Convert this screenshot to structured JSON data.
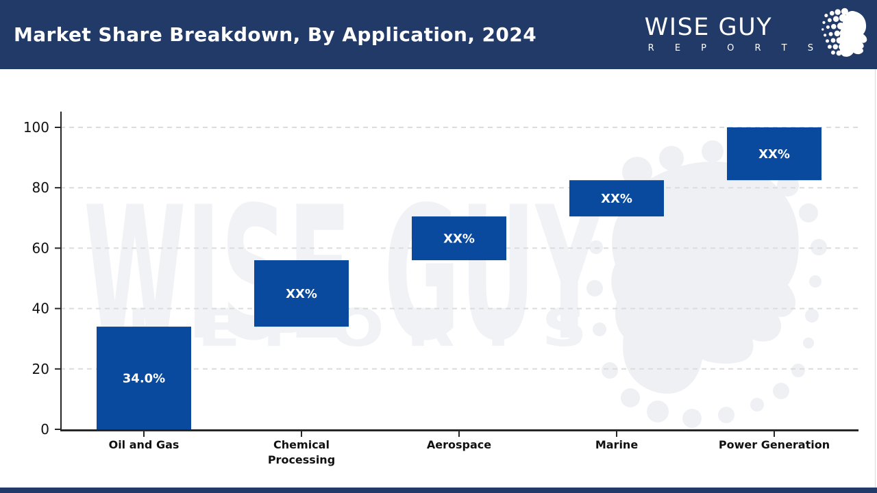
{
  "header": {
    "title": "Market Share Breakdown, By Application, 2024",
    "logo": {
      "name": "WISE GUY",
      "subtitle": "R E P O R T S"
    }
  },
  "watermark": {
    "line1": "WISE GUY",
    "line2": "R E P O R T S"
  },
  "chart_data": {
    "type": "bar",
    "subtype": "waterfall",
    "title": "Market Share Breakdown, By Application, 2024",
    "xlabel": "",
    "ylabel": "",
    "categories": [
      "Oil and Gas",
      "Chemical Processing",
      "Aerospace",
      "Marine",
      "Power Generation"
    ],
    "tick_labels": [
      "Oil and Gas",
      "Chemical\nProcessing",
      "Aerospace",
      "Marine",
      "Power Generation"
    ],
    "series": [
      {
        "name": "Market share (%)",
        "segments": [
          {
            "category": "Oil and Gas",
            "start": 0,
            "end": 34,
            "label": "34.0%"
          },
          {
            "category": "Chemical Processing",
            "start": 34,
            "end": 56,
            "label": "XX%"
          },
          {
            "category": "Aerospace",
            "start": 56,
            "end": 70.5,
            "label": "XX%"
          },
          {
            "category": "Marine",
            "start": 70.5,
            "end": 82.5,
            "label": "XX%"
          },
          {
            "category": "Power Generation",
            "start": 82.5,
            "end": 100,
            "label": "XX%"
          }
        ]
      }
    ],
    "yticks": [
      0,
      20,
      40,
      60,
      80,
      100
    ],
    "ylim": [
      0,
      105
    ],
    "grid": "horizontal-dashed",
    "legend": "none",
    "bar_color": "#0A4A9E",
    "bar_label_color": "#FFFFFF",
    "axis_color": "#262626",
    "tick_text_color": "#111111",
    "gridline_color": "#DCDCDC"
  },
  "colors": {
    "navy": "#223A68",
    "watermark_gray": "#F1F2F5",
    "watermark_head_gray": "#EEF0F3"
  }
}
